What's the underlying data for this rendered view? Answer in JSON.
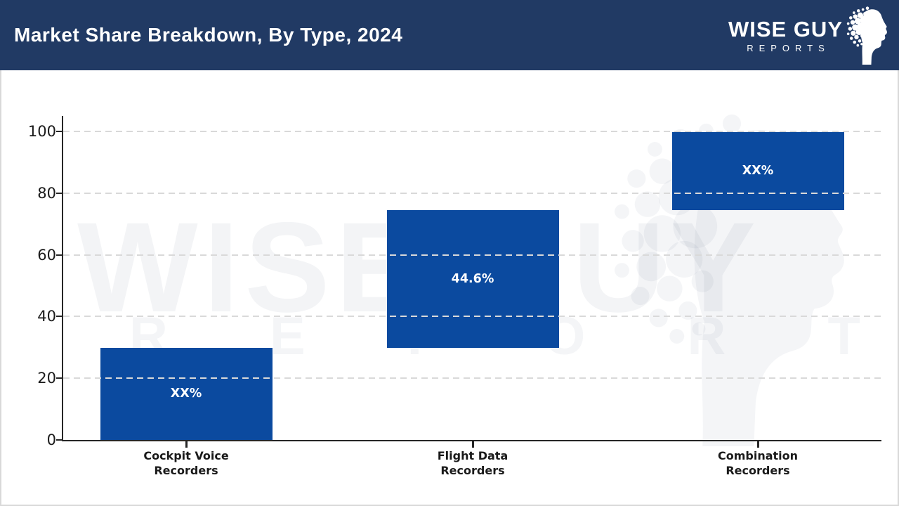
{
  "header": {
    "title": "Market Share Breakdown, By Type, 2024",
    "logo": {
      "line1": "WISE GUY",
      "line2": "REPORTS"
    }
  },
  "watermark": {
    "line1": "WISE GUY",
    "line2": "R E P O R T S"
  },
  "colors": {
    "header_bg": "#213A64",
    "bar_fill": "#0B4A9F",
    "grid": "#d9d9d9",
    "axis": "#262626",
    "bar_label_text": "#ffffff"
  },
  "chart_data": {
    "type": "bar",
    "subtype": "floating-stacked-percentage",
    "title": "Market Share Breakdown, By Type, 2024",
    "categories": [
      "Cockpit Voice\nRecorders",
      "Flight Data\nRecorders",
      "Combination\nRecorders"
    ],
    "bars": [
      {
        "category": "Cockpit Voice Recorders",
        "base": 0,
        "top": 29.9,
        "label": "XX%"
      },
      {
        "category": "Flight Data Recorders",
        "base": 29.9,
        "top": 74.5,
        "label": "44.6%"
      },
      {
        "category": "Combination Recorders",
        "base": 74.5,
        "top": 99.8,
        "label": "XX%"
      }
    ],
    "yticks": [
      0,
      20,
      40,
      60,
      80,
      100
    ],
    "ylim": [
      0,
      105
    ],
    "grid": "horizontal-dashed",
    "legend": null
  }
}
